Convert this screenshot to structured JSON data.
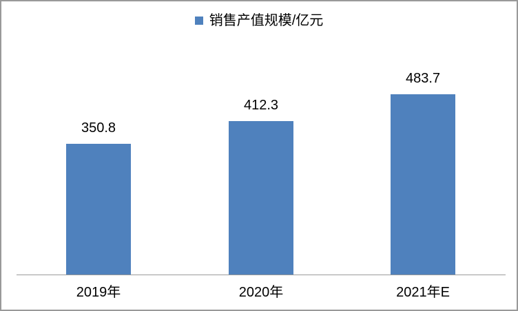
{
  "page": {
    "background": "#ffffff",
    "frame_border_color": "#999999"
  },
  "chart_data": {
    "type": "bar",
    "title": "",
    "legend": {
      "position": "top-center",
      "marker": "square",
      "entries": [
        "销售产值规模/亿元"
      ]
    },
    "categories": [
      "2019年",
      "2020年",
      "2021年E"
    ],
    "series": [
      {
        "name": "销售产值规模/亿元",
        "values": [
          350.8,
          412.3,
          483.7
        ]
      }
    ],
    "value_labels": [
      "350.8",
      "412.3",
      "483.7"
    ],
    "bar_color": "#4F81BD",
    "axis_line_color": "#999999",
    "text_color": "#000000",
    "ylim": [
      0,
      600
    ],
    "grid": false,
    "y_axis_visible": false
  }
}
